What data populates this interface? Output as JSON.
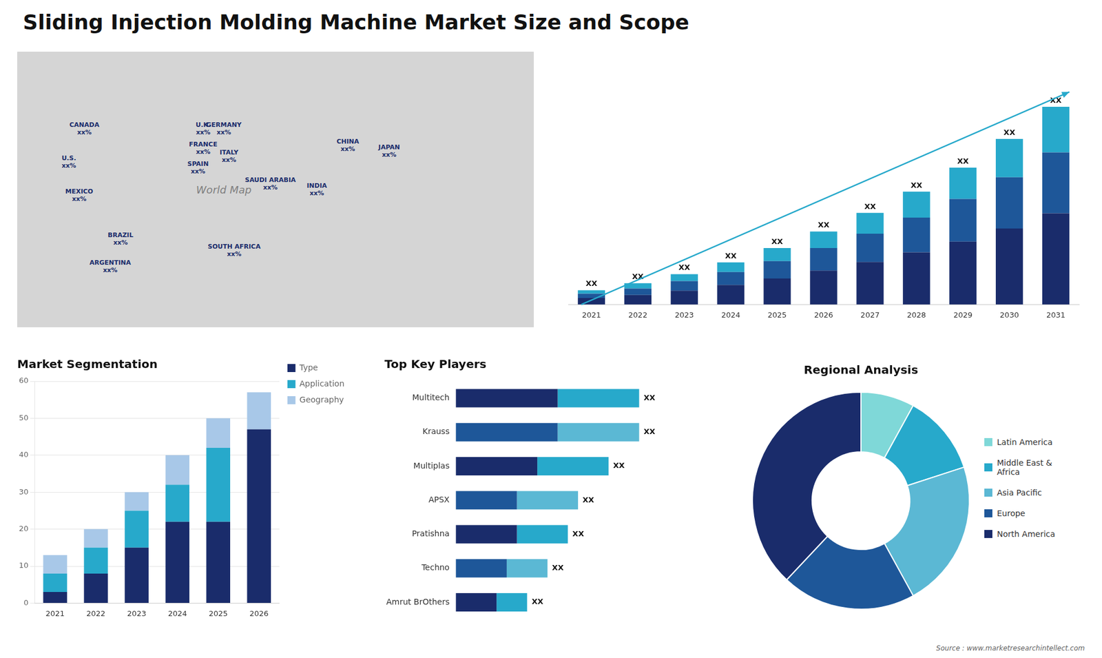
{
  "chart_data": [
    {
      "type": "map",
      "title": "Sliding Injection Molding Machine Market Size and Scope",
      "annotations": [
        "World Map",
        "CANADA\nxx%",
        "U.S.\nxx%",
        "MEXICO\nxx%",
        "BRAZIL\nxx%",
        "ARGENTINA\nxx%",
        "U.K.\nxx%",
        "FRANCE\nxx%",
        "SPAIN\nxx%",
        "GERMANY\nxx%",
        "ITALY\nxx%",
        "SOUTH AFRICA\nxx%",
        "SAUDI ARABIA\nxx%",
        "CHINA\nxx%",
        "INDIA\nxx%",
        "JAPAN\nxx%"
      ]
    },
    {
      "type": "bar",
      "categories": [
        "2021",
        "2022",
        "2023",
        "2024",
        "2025",
        "2026",
        "2027",
        "2028",
        "2029",
        "2030",
        "2031"
      ],
      "series": [
        {
          "color": "#1a2c6b",
          "values": [
            1.5,
            2.2,
            3.2,
            4.5,
            6.0,
            7.8,
            9.8,
            12.0,
            14.5,
            17.5,
            21.0
          ]
        },
        {
          "color": "#1e5799",
          "values": [
            1.0,
            1.5,
            2.2,
            3.0,
            4.0,
            5.2,
            6.5,
            8.0,
            9.8,
            11.8,
            14.0
          ]
        },
        {
          "color": "#27a9cb",
          "values": [
            0.8,
            1.2,
            1.6,
            2.2,
            3.0,
            3.8,
            4.8,
            6.0,
            7.2,
            8.8,
            10.5
          ]
        }
      ],
      "stacked": true,
      "ylim": [
        0,
        56.875
      ],
      "tick_labels": "x",
      "grid": false,
      "annotations": [
        "XX",
        "XX",
        "XX",
        "XX",
        "XX",
        "XX",
        "XX",
        "XX",
        "XX",
        "XX",
        "XX"
      ]
    },
    {
      "type": "bar",
      "title": "Market Segmentation",
      "categories": [
        "2021",
        "2022",
        "2023",
        "2024",
        "2025",
        "2026"
      ],
      "series": [
        {
          "name": "Type",
          "color": "#1a2c6b",
          "values": [
            3,
            8,
            15,
            22,
            22,
            47
          ]
        },
        {
          "name": "Application",
          "color": "#27a9cb",
          "values": [
            5,
            7,
            10,
            10,
            20,
            0
          ]
        },
        {
          "name": "Geography",
          "color": "#a8c8e8",
          "values": [
            5,
            5,
            5,
            8,
            8,
            10
          ]
        }
      ],
      "stacked": true,
      "ylim": [
        0,
        60
      ],
      "yticks": [
        0,
        10,
        20,
        30,
        40,
        50,
        60
      ],
      "grid": true,
      "legend": "right"
    },
    {
      "type": "bar",
      "orientation": "horizontal",
      "title": "Top Key Players",
      "categories": [
        "Multitech",
        "Krauss",
        "Multiplas",
        "APSX",
        "Pratishna",
        "Techno",
        "Amrut BrOthers"
      ],
      "series": [
        {
          "colors": [
            "#1a2c6b",
            "#1e5799",
            "#1a2c6b",
            "#1e5799",
            "#1a2c6b",
            "#1e5799",
            "#1a2c6b"
          ],
          "values": [
            5,
            5,
            4,
            3,
            3,
            2.5,
            2
          ]
        },
        {
          "colors": [
            "#27a9cb",
            "#5bb8d4",
            "#27a9cb",
            "#5bb8d4",
            "#27a9cb",
            "#5bb8d4",
            "#27a9cb"
          ],
          "values": [
            4,
            4,
            3.5,
            3,
            2.5,
            2,
            1.5
          ]
        }
      ],
      "stacked": true,
      "xlim": [
        0,
        12
      ],
      "tick_labels": "y",
      "grid": false,
      "annotations": [
        "XX",
        "XX",
        "XX",
        "XX",
        "XX",
        "XX",
        "XX"
      ]
    },
    {
      "type": "doughnut",
      "title": "Regional Analysis",
      "categories": [
        "Latin America",
        "Middle East &\nAfrica",
        "Asia Pacific",
        "Europe",
        "North America"
      ],
      "values": [
        8,
        12,
        22,
        20,
        38
      ],
      "colors": [
        "#7fd8d8",
        "#27a9cb",
        "#5bb8d4",
        "#1e5799",
        "#1a2c6b"
      ],
      "legend": "right",
      "annotations": [
        "Source : www.marketresearchintellect.com"
      ]
    }
  ]
}
